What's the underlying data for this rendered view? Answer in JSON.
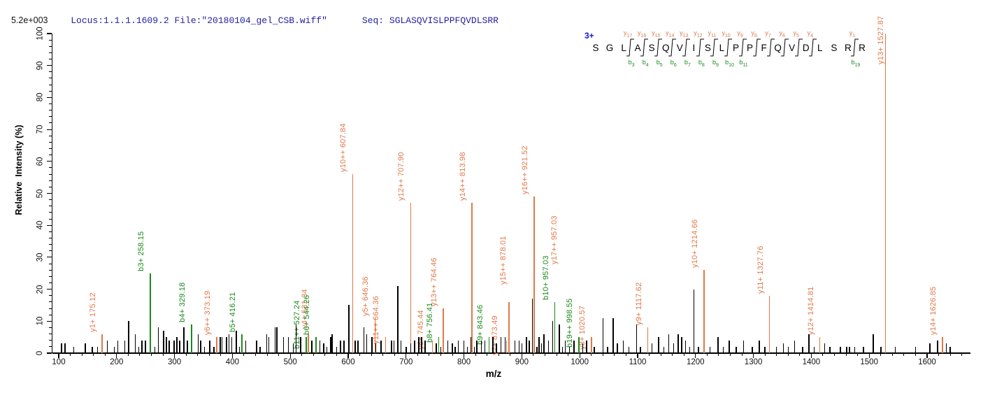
{
  "header": {
    "locus_file": "Locus:1.1.1.1609.2 File:\"20180104_gel_CSB.wiff\"",
    "seq_text": "Seq: SGLASQVISLPPFQVDLSRR"
  },
  "annotations": {
    "intensity_scale": "5.2e+003"
  },
  "peptide": {
    "charge_label": "3+",
    "sequence": "SGLASQVISLPPFQVDLSRR",
    "cuts": [
      {
        "after": 3,
        "y": "y17",
        "b": "b3"
      },
      {
        "after": 4,
        "y": "y16",
        "b": "b4"
      },
      {
        "after": 5,
        "y": "y15",
        "b": "b5"
      },
      {
        "after": 6,
        "y": "y14",
        "b": "b6"
      },
      {
        "after": 7,
        "y": "y13",
        "b": "b7"
      },
      {
        "after": 8,
        "y": "y12",
        "b": "b8"
      },
      {
        "after": 9,
        "y": "y11",
        "b": "b9"
      },
      {
        "after": 10,
        "y": "y10",
        "b": "b10"
      },
      {
        "after": 11,
        "y": "y9",
        "b": "b11"
      },
      {
        "after": 12,
        "y": "y8",
        "b": ""
      },
      {
        "after": 13,
        "y": "y7",
        "b": ""
      },
      {
        "after": 14,
        "y": "y6",
        "b": ""
      },
      {
        "after": 15,
        "y": "y5",
        "b": ""
      },
      {
        "after": 16,
        "y": "y4",
        "b": ""
      },
      {
        "after": 19,
        "y": "y1",
        "b": "b19"
      }
    ]
  },
  "chart_data": {
    "type": "bar",
    "subtype": "ms2-peak-spectrum",
    "title": "",
    "xlabel": "m/z",
    "ylabel": "Relative  Intensity (%)",
    "xlim": [
      89,
      1675
    ],
    "ylim": [
      0,
      100
    ],
    "grid": false,
    "x_major_ticks": [
      100,
      200,
      300,
      400,
      500,
      600,
      700,
      800,
      900,
      1000,
      1100,
      1200,
      1300,
      1400,
      1500,
      1600
    ],
    "x_minor_step": 20,
    "y_major_ticks": [
      0,
      10,
      20,
      30,
      40,
      50,
      60,
      70,
      80,
      90,
      100
    ],
    "y_minor_step": 2,
    "colors": {
      "y_ion": "#e0784a",
      "b_ion": "#1b8a1b",
      "unassigned": "#000000"
    },
    "series": [
      {
        "name": "y-ion",
        "color": "#e0784a",
        "points": [
          {
            "label": "y1+ 175.12",
            "mz": 175.12,
            "pct": 6
          },
          {
            "label": "y6++ 373.19",
            "mz": 373.19,
            "pct": 5
          },
          {
            "label": "y4+ 531.34",
            "mz": 531.34,
            "pct": 6,
            "dx": 8,
            "dy": 5
          },
          {
            "label": "y10++ 607.84",
            "mz": 607.84,
            "pct": 56
          },
          {
            "label": "y5+ 646.36",
            "mz": 646.36,
            "pct": 11
          },
          {
            "label": "y11++ 664.36",
            "mz": 664.36,
            "pct": 5,
            "dy": -13
          },
          {
            "label": "y12++ 707.90",
            "mz": 707.9,
            "pct": 47
          },
          {
            "label": "y6+ 745.44",
            "mz": 745.44,
            "pct": 4,
            "dx": -3,
            "dy": -16
          },
          {
            "label": "y13++ 764.46",
            "mz": 764.46,
            "pct": 14
          },
          {
            "label": "y14++ 813.98",
            "mz": 813.98,
            "pct": 47
          },
          {
            "label": "y7+ 873.49",
            "mz": 873.49,
            "pct": 4,
            "dx": -3,
            "dy": -24
          },
          {
            "label": "y15++ 878.01",
            "mz": 878.01,
            "pct": 16,
            "dx": 5,
            "dy": 22
          },
          {
            "label": "y16++ 921.52",
            "mz": 921.52,
            "pct": 49
          },
          {
            "label": "y17++ 957.03",
            "mz": 957.03,
            "pct": 16,
            "dx": 12,
            "dy": 51
          },
          {
            "label": "y8+ 1020.57",
            "mz": 1020.57,
            "pct": 5,
            "dy": -21
          },
          {
            "label": "y9+ 1117.62",
            "mz": 1117.62,
            "pct": 8
          },
          {
            "label": "y10+ 1214.66",
            "mz": 1214.66,
            "pct": 26
          },
          {
            "label": "y11+ 1327.76",
            "mz": 1327.76,
            "pct": 18
          },
          {
            "label": "y12+ 1414.81",
            "mz": 1414.81,
            "pct": 5
          },
          {
            "label": "y13+ 1527.87",
            "mz": 1527.87,
            "pct": 100,
            "dx": 7,
            "dy": -47
          },
          {
            "label": "y14+ 1626.85",
            "mz": 1626.85,
            "pct": 5
          }
        ]
      },
      {
        "name": "b-ion",
        "color": "#1b8a1b",
        "points": [
          {
            "label": "b3+ 258.15",
            "mz": 258.15,
            "pct": 25
          },
          {
            "label": "b4+ 329.18",
            "mz": 329.18,
            "pct": 9
          },
          {
            "label": "b5+ 416.21",
            "mz": 416.21,
            "pct": 6
          },
          {
            "label": "b11++ 527.24",
            "mz": 527.24,
            "pct": 5,
            "dy": -20
          },
          {
            "label": "b6+ 544.26",
            "mz": 544.26,
            "pct": 5
          },
          {
            "label": "b8+ 756.41",
            "mz": 756.41,
            "pct": 5,
            "dy": -11
          },
          {
            "label": "b9+ 843.46",
            "mz": 843.46,
            "pct": 5,
            "dy": -14
          },
          {
            "label": "b10+ 957.03",
            "mz": 957.03,
            "pct": 16
          },
          {
            "label": "b19++ 998.55",
            "mz": 998.55,
            "pct": 5,
            "dy": -18
          }
        ]
      },
      {
        "name": "unassigned",
        "color": "#000000",
        "points": [
          [
            105,
            3
          ],
          [
            111,
            3
          ],
          [
            126,
            2
          ],
          [
            146,
            3
          ],
          [
            158,
            2
          ],
          [
            167,
            2
          ],
          [
            184,
            4
          ],
          [
            196,
            2
          ],
          [
            202,
            4
          ],
          [
            214,
            4
          ],
          [
            221,
            10
          ],
          [
            232,
            6
          ],
          [
            238,
            2
          ],
          [
            244,
            4
          ],
          [
            250,
            4
          ],
          [
            266,
            2
          ],
          [
            272,
            8
          ],
          [
            281,
            7
          ],
          [
            286,
            5
          ],
          [
            291,
            4
          ],
          [
            299,
            4
          ],
          [
            304,
            5
          ],
          [
            309,
            4
          ],
          [
            316,
            8
          ],
          [
            322,
            4
          ],
          [
            341,
            6
          ],
          [
            345,
            4
          ],
          [
            352,
            2
          ],
          [
            361,
            4
          ],
          [
            368,
            2
          ],
          [
            379,
            5
          ],
          [
            382,
            5
          ],
          [
            390,
            5
          ],
          [
            394,
            6
          ],
          [
            399,
            5
          ],
          [
            407,
            7
          ],
          [
            412,
            2
          ],
          [
            423,
            4
          ],
          [
            442,
            4
          ],
          [
            448,
            2
          ],
          [
            459,
            6
          ],
          [
            463,
            5
          ],
          [
            474,
            8
          ],
          [
            477,
            8
          ],
          [
            488,
            5
          ],
          [
            497,
            5
          ],
          [
            505,
            3
          ],
          [
            510,
            9
          ],
          [
            518,
            5
          ],
          [
            537,
            4
          ],
          [
            551,
            4
          ],
          [
            558,
            3
          ],
          [
            563,
            2
          ],
          [
            570,
            5
          ],
          [
            572,
            6
          ],
          [
            580,
            2
          ],
          [
            587,
            4
          ],
          [
            593,
            4
          ],
          [
            601,
            15
          ],
          [
            612,
            4
          ],
          [
            617,
            4
          ],
          [
            627,
            8
          ],
          [
            632,
            6
          ],
          [
            641,
            5
          ],
          [
            648,
            3
          ],
          [
            657,
            4
          ],
          [
            675,
            4
          ],
          [
            679,
            4
          ],
          [
            686,
            21
          ],
          [
            691,
            4
          ],
          [
            700,
            2
          ],
          [
            708,
            3
          ],
          [
            715,
            4
          ],
          [
            722,
            5
          ],
          [
            727,
            5
          ],
          [
            733,
            4
          ],
          [
            752,
            3
          ],
          [
            760,
            2
          ],
          [
            772,
            4
          ],
          [
            780,
            3
          ],
          [
            785,
            2
          ],
          [
            790,
            4
          ],
          [
            800,
            4
          ],
          [
            806,
            2
          ],
          [
            812,
            5
          ],
          [
            818,
            2
          ],
          [
            822,
            4
          ],
          [
            830,
            4
          ],
          [
            836,
            4
          ],
          [
            850,
            5
          ],
          [
            856,
            3
          ],
          [
            864,
            5
          ],
          [
            871,
            5
          ],
          [
            888,
            4
          ],
          [
            895,
            4
          ],
          [
            900,
            3
          ],
          [
            908,
            5
          ],
          [
            913,
            4
          ],
          [
            918,
            17
          ],
          [
            926,
            2
          ],
          [
            930,
            5
          ],
          [
            934,
            3
          ],
          [
            938,
            6
          ],
          [
            946,
            4
          ],
          [
            953,
            10
          ],
          [
            965,
            9
          ],
          [
            970,
            2
          ],
          [
            975,
            4
          ],
          [
            982,
            2
          ],
          [
            990,
            4
          ],
          [
            1005,
            3
          ],
          [
            1012,
            4
          ],
          [
            1025,
            2
          ],
          [
            1040,
            11
          ],
          [
            1048,
            2
          ],
          [
            1058,
            11
          ],
          [
            1065,
            3
          ],
          [
            1075,
            4
          ],
          [
            1085,
            2
          ],
          [
            1098,
            9
          ],
          [
            1105,
            2
          ],
          [
            1125,
            3
          ],
          [
            1136,
            5
          ],
          [
            1145,
            2
          ],
          [
            1154,
            6
          ],
          [
            1162,
            3
          ],
          [
            1170,
            6
          ],
          [
            1176,
            5
          ],
          [
            1183,
            4
          ],
          [
            1190,
            2
          ],
          [
            1197,
            20
          ],
          [
            1205,
            2
          ],
          [
            1225,
            2
          ],
          [
            1239,
            5
          ],
          [
            1248,
            2
          ],
          [
            1258,
            4
          ],
          [
            1270,
            2
          ],
          [
            1283,
            4
          ],
          [
            1298,
            2
          ],
          [
            1310,
            4
          ],
          [
            1320,
            2
          ],
          [
            1340,
            2
          ],
          [
            1352,
            3
          ],
          [
            1360,
            2
          ],
          [
            1371,
            4
          ],
          [
            1385,
            2
          ],
          [
            1396,
            6
          ],
          [
            1405,
            2
          ],
          [
            1423,
            3
          ],
          [
            1432,
            2
          ],
          [
            1450,
            2
          ],
          [
            1461,
            2
          ],
          [
            1466,
            2
          ],
          [
            1475,
            2
          ],
          [
            1490,
            2
          ],
          [
            1507,
            6
          ],
          [
            1520,
            2
          ],
          [
            1545,
            2
          ],
          [
            1580,
            2
          ],
          [
            1605,
            3
          ],
          [
            1618,
            4
          ],
          [
            1633,
            3
          ],
          [
            1640,
            2
          ]
        ]
      }
    ]
  }
}
